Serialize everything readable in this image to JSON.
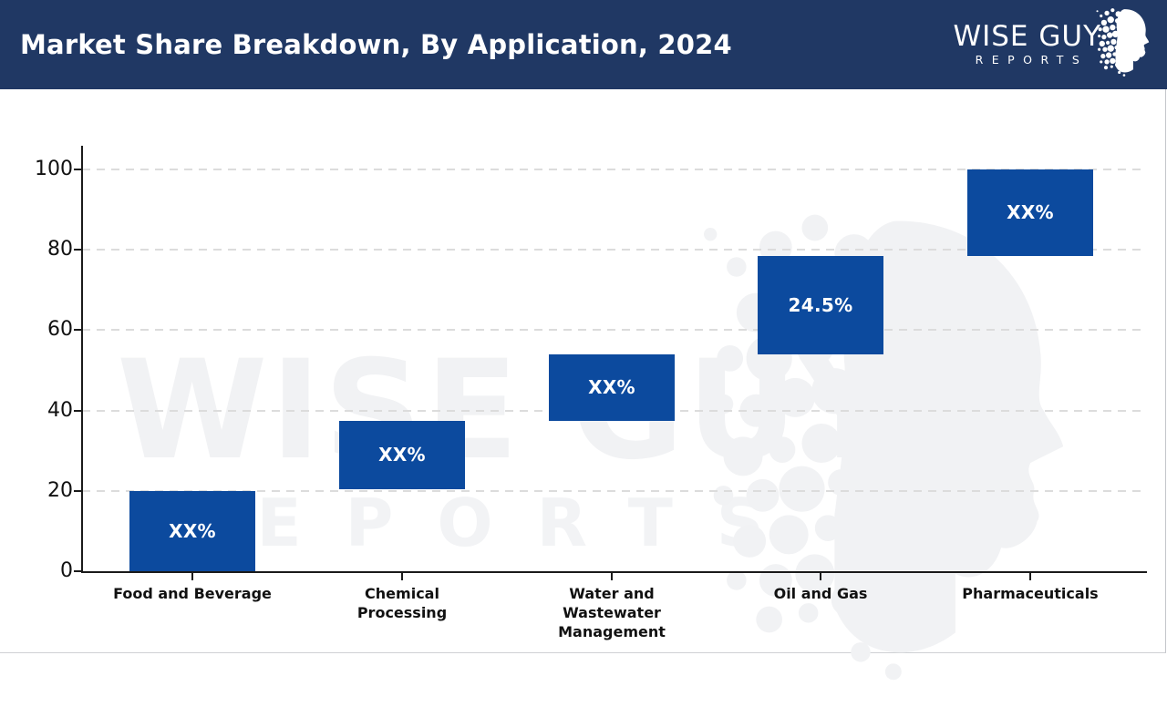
{
  "header": {
    "title": "Market Share Breakdown, By Application, 2024",
    "logo": {
      "line1": "WISE GUY",
      "line2": "REPORTS"
    }
  },
  "watermark": {
    "line1": "WISE GUY",
    "line2": "REPORTS"
  },
  "colors": {
    "header_bg": "#203864",
    "bar": "#0c4a9e",
    "grid": "#dcdcdc",
    "axis": "#1a1a1a",
    "watermark": "#f1f2f4"
  },
  "chart_data": {
    "type": "bar",
    "variant": "floating-waterfall",
    "title": "Market Share Breakdown, By Application, 2024",
    "categories": [
      "Food and Beverage",
      "Chemical Processing",
      "Water and Wastewater Management",
      "Oil and Gas",
      "Pharmaceuticals"
    ],
    "bars": [
      {
        "category": "Food and Beverage",
        "label_lines": [
          "Food and Beverage"
        ],
        "start": 0,
        "end": 20,
        "value_label": "XX%"
      },
      {
        "category": "Chemical Processing",
        "label_lines": [
          "Chemical",
          "Processing"
        ],
        "start": 20.5,
        "end": 37.5,
        "value_label": "XX%"
      },
      {
        "category": "Water and Wastewater Management",
        "label_lines": [
          "Water and",
          "Wastewater",
          "Management"
        ],
        "start": 37.5,
        "end": 54,
        "value_label": "XX%"
      },
      {
        "category": "Oil and Gas",
        "label_lines": [
          "Oil and Gas"
        ],
        "start": 54,
        "end": 78.5,
        "value_label": "24.5%"
      },
      {
        "category": "Pharmaceuticals",
        "label_lines": [
          "Pharmaceuticals"
        ],
        "start": 78.5,
        "end": 100,
        "value_label": "XX%"
      }
    ],
    "ylim": [
      0,
      100
    ],
    "yticks": [
      0,
      20,
      40,
      60,
      80,
      100
    ],
    "xlabel": "",
    "ylabel": "",
    "grid": "horizontal dashed",
    "legend": null
  }
}
